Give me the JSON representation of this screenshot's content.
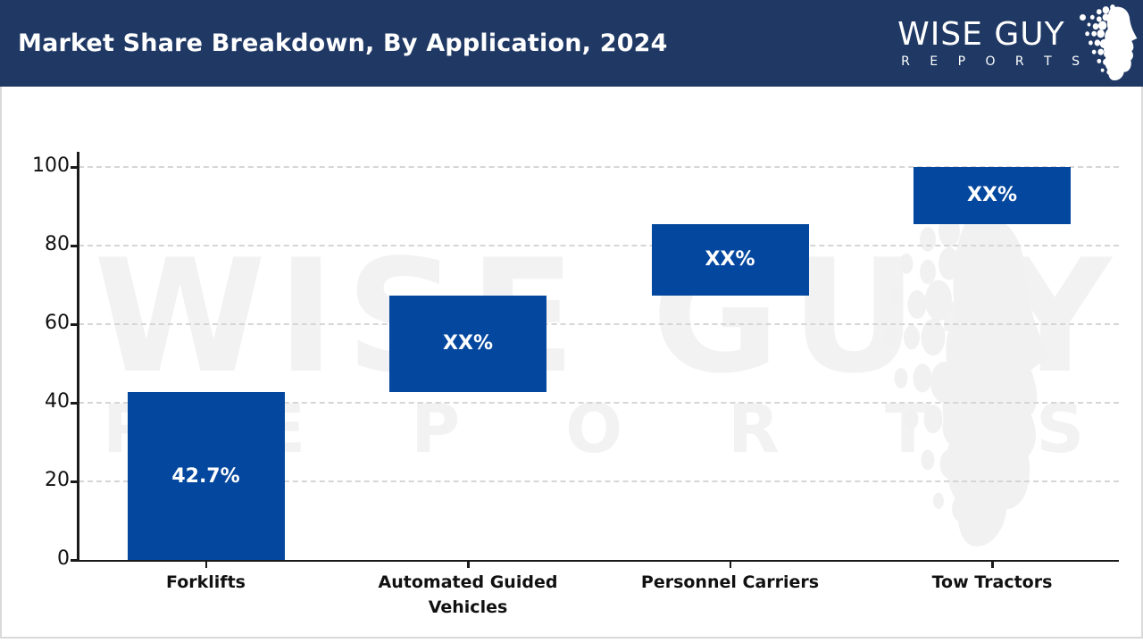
{
  "header": {
    "title": "Market Share Breakdown, By Application, 2024",
    "bg_color": "#1f3864",
    "logo": {
      "wordmark": "WISE GUY",
      "subtext": "R E P O R T S"
    }
  },
  "watermark": {
    "line1": "WISE GU·Y",
    "line2": "R E P O R T S"
  },
  "chart_data": {
    "type": "bar",
    "subtype": "waterfall",
    "title": "Market Share Breakdown, By Application, 2024",
    "categories": [
      "Forklifts",
      "Automated Guided\nVehicles",
      "Personnel Carriers",
      "Tow Tractors"
    ],
    "segments": [
      {
        "category": "Forklifts",
        "start": 0,
        "end": 42.7,
        "label": "42.7%"
      },
      {
        "category": "Automated Guided Vehicles",
        "start": 42.7,
        "end": 67.3,
        "label": "XX%"
      },
      {
        "category": "Personnel Carriers",
        "start": 67.3,
        "end": 85.5,
        "label": "XX%"
      },
      {
        "category": "Tow Tractors",
        "start": 85.5,
        "end": 100,
        "label": "XX%"
      }
    ],
    "ylim": [
      0,
      100
    ],
    "yticks": [
      0,
      20,
      40,
      60,
      80,
      100
    ],
    "grid": "horizontal dashed",
    "legend": "none",
    "bar_color": "#04479e",
    "label_color": "#ffffff",
    "axis_color": "#1a1a1a",
    "gridline_color": "#d6d6d6"
  }
}
